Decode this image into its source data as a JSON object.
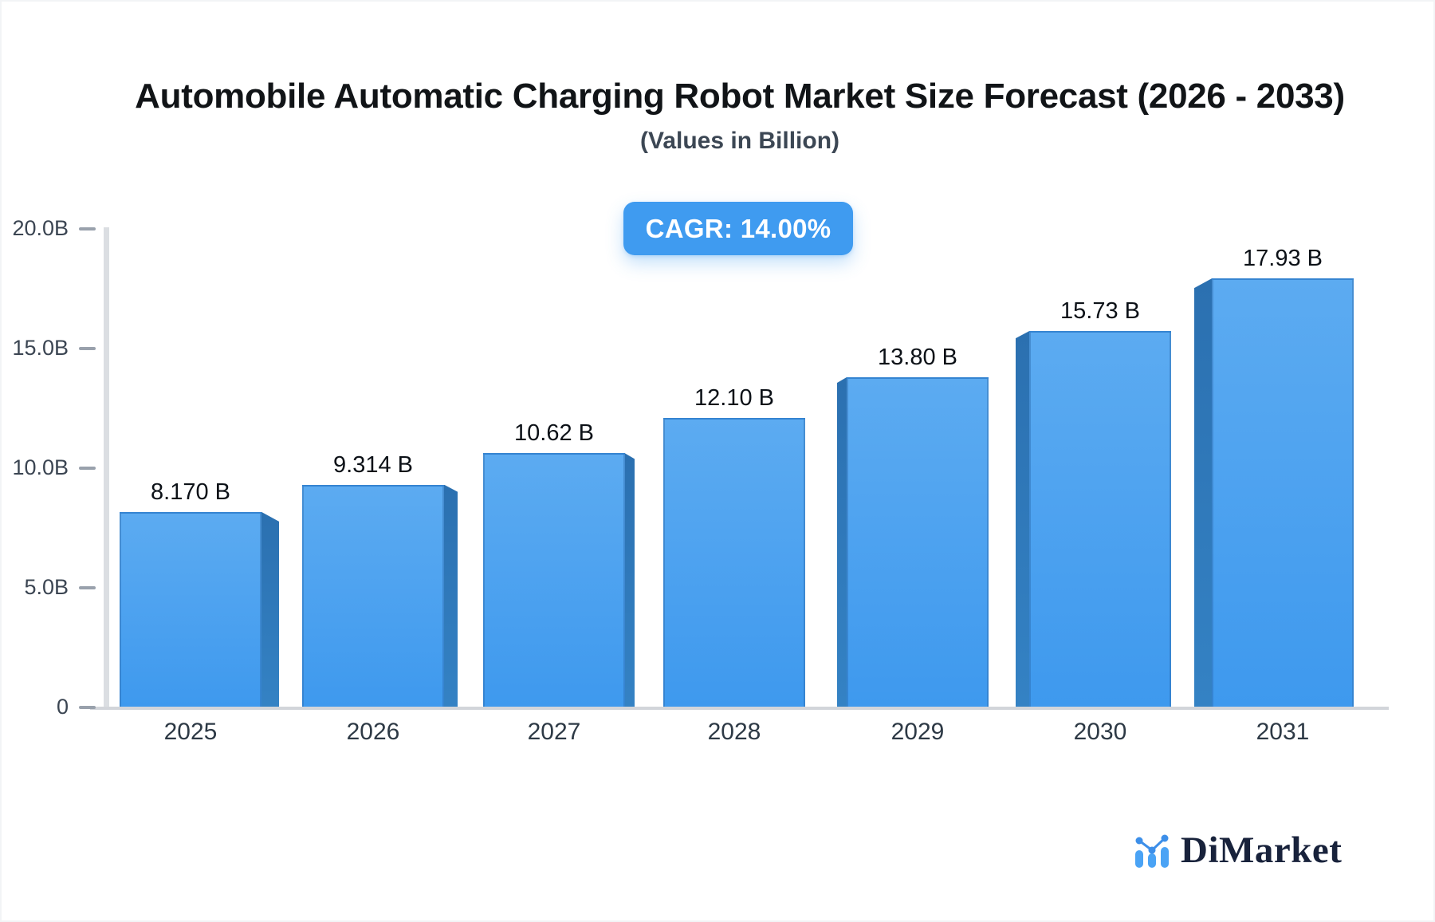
{
  "header": {
    "title": "Automobile Automatic Charging Robot Market Size Forecast (2026 - 2033)",
    "subtitle": "(Values in Billion)"
  },
  "badge": {
    "label": "CAGR: 14.00%"
  },
  "chart_data": {
    "type": "bar",
    "categories": [
      "2025",
      "2026",
      "2027",
      "2028",
      "2029",
      "2030",
      "2031"
    ],
    "values": [
      8.17,
      9.314,
      10.62,
      12.1,
      13.8,
      15.73,
      17.93
    ],
    "value_labels": [
      "8.170 B",
      "9.314 B",
      "10.62 B",
      "12.10 B",
      "13.80 B",
      "15.73 B",
      "17.93 B"
    ],
    "title": "Automobile Automatic Charging Robot Market Size Forecast (2026 - 2033)",
    "subtitle": "(Values in Billion)",
    "cagr": "CAGR: 14.00%",
    "xlabel": "",
    "ylabel": "",
    "ylim": [
      0,
      20
    ],
    "y_tick_values": [
      20,
      15,
      10,
      5,
      0
    ],
    "y_tick_labels": [
      "20.0B",
      "15.0B",
      "10.0B",
      "5.0B",
      "0"
    ],
    "grid": false,
    "legend": false,
    "bar_style": "3d-perspective"
  },
  "colors": {
    "bar_face_top": "#5CABF1",
    "bar_face_bottom": "#3E99EE",
    "bar_side_top": "#2B70B0",
    "bar_side_bottom": "#3482C4",
    "badge_bg": "#3F9BF0",
    "badge_text": "#FFFFFF",
    "axis_line": "#DBDEE2",
    "baseline": "#D2D5DA",
    "tick_mark": "#99A1AC",
    "logo_navy": "#18223B",
    "logo_blue": "#4AA3F5",
    "logo_accent": "#3D8FE9"
  },
  "logo": {
    "text": "DiMarket",
    "icon": "mini-bar-line-chart-icon"
  }
}
